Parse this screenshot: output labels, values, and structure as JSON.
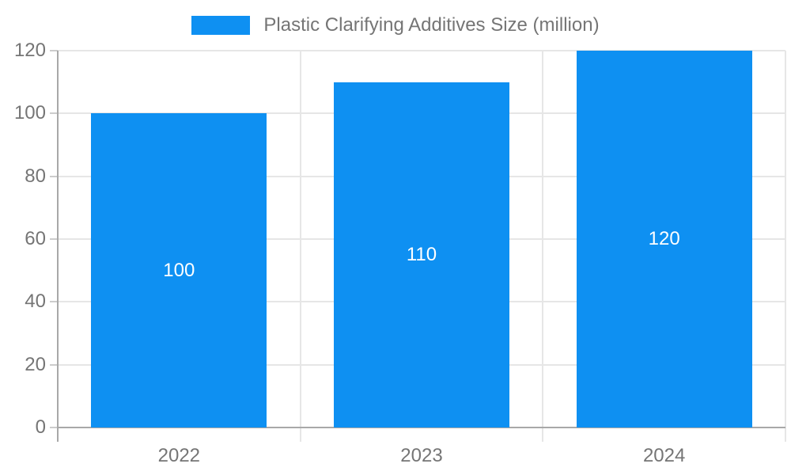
{
  "chart_data": {
    "type": "bar",
    "title": "Plastic Clarifying Additives Size (million)",
    "series_name": "Plastic Clarifying Additives Size (million)",
    "categories": [
      "2022",
      "2023",
      "2024"
    ],
    "values": [
      100,
      110,
      120
    ],
    "bar_labels": [
      "100",
      "110",
      "120"
    ],
    "xlabel": "",
    "ylabel": "",
    "ylim": [
      0,
      120
    ],
    "yticks": [
      0,
      20,
      40,
      60,
      80,
      100,
      120
    ],
    "grid": true,
    "legend_position": "top"
  },
  "colors": {
    "bar": "#0e90f2",
    "text": "#757575",
    "grid": "#e6e6e6",
    "axis": "#a8a8a8",
    "tick": "#cccccc",
    "bar_label": "#ffffff",
    "background": "#ffffff"
  }
}
